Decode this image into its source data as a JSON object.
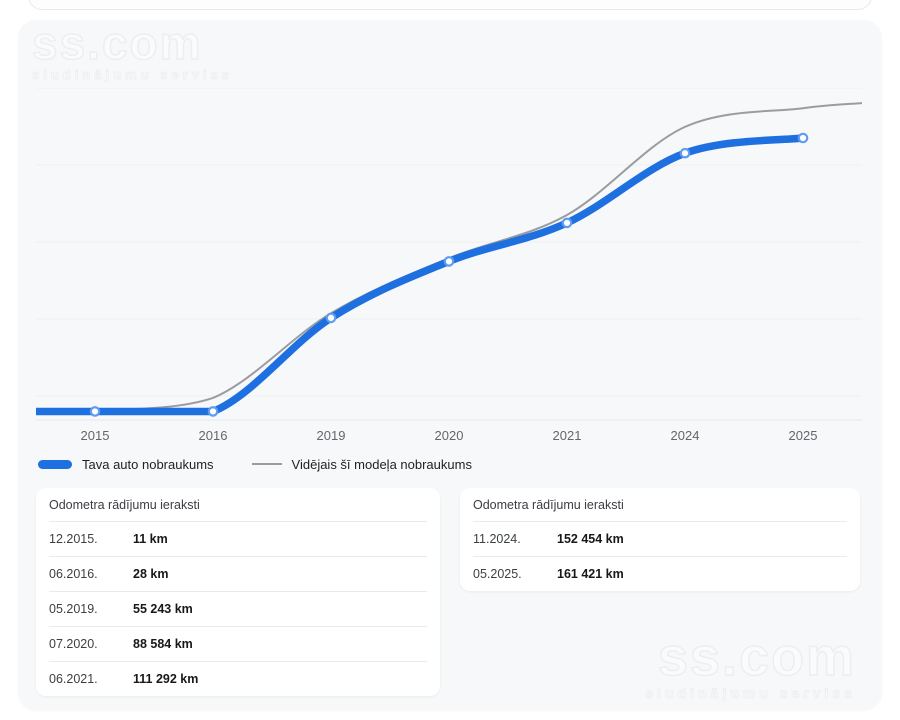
{
  "watermark": {
    "brand": "ss.com",
    "tagline": "sludinājumu serviss"
  },
  "chart": {
    "x_labels": [
      "2015",
      "2016",
      "2019",
      "2020",
      "2021",
      "2024",
      "2025"
    ],
    "legend": [
      {
        "label": "Tava auto nobraukums",
        "color": "#1e6fe0"
      },
      {
        "label": "Vidējais šī modeļa nobraukums",
        "color": "#9a9ca0"
      }
    ]
  },
  "chart_data": {
    "type": "line",
    "categories": [
      2015,
      2016,
      2019,
      2020,
      2021,
      2024,
      2025
    ],
    "series": [
      {
        "name": "Tava auto nobraukums",
        "color": "#1e6fe0",
        "style": "thick-with-markers",
        "values": [
          11,
          28,
          55243,
          88584,
          111292,
          152454,
          161421
        ]
      },
      {
        "name": "Vidējais šī modeļa nobraukums",
        "color": "#9a9ca0",
        "style": "thin",
        "values": [
          500,
          8000,
          58000,
          90500,
          116000,
          168000,
          179000
        ],
        "right_edge_value": 182000,
        "note": "values estimated from pixel positions; no numeric labels shown"
      }
    ],
    "ylim": [
      0,
      192000
    ],
    "grid": "horizontal-faint",
    "legend_position": "bottom-left",
    "marker": {
      "fill": "#ffffff",
      "stroke": "#5e9cf0"
    }
  },
  "tables": [
    {
      "title": "Odometra rādījumu ieraksti",
      "rows": [
        {
          "date": "12.2015.",
          "value": "11 km"
        },
        {
          "date": "06.2016.",
          "value": "28 km"
        },
        {
          "date": "05.2019.",
          "value": "55 243 km"
        },
        {
          "date": "07.2020.",
          "value": "88 584 km"
        },
        {
          "date": "06.2021.",
          "value": "111 292 km"
        }
      ]
    },
    {
      "title": "Odometra rādījumu ieraksti",
      "rows": [
        {
          "date": "11.2024.",
          "value": "152 454 km"
        },
        {
          "date": "05.2025.",
          "value": "161 421 km"
        }
      ]
    }
  ]
}
